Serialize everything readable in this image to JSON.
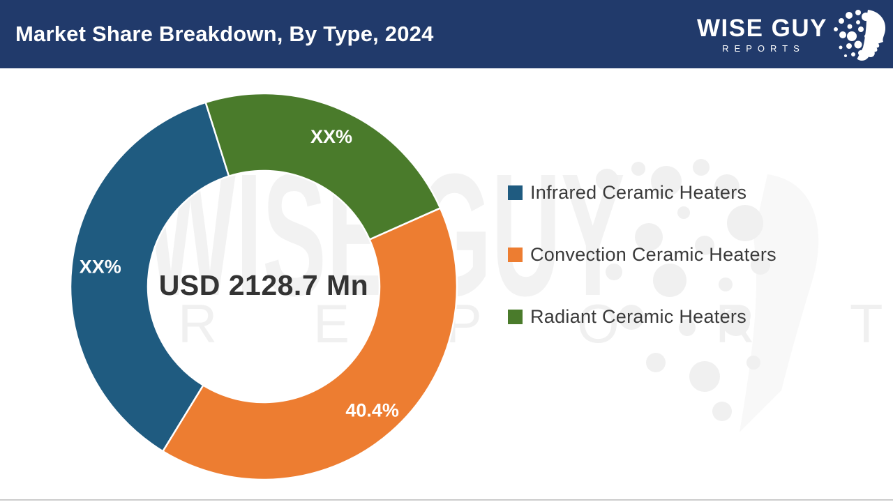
{
  "header": {
    "title": "Market Share Breakdown, By Type, 2024",
    "bg_color": "#213A6B",
    "logo_line1": "WISE GUY",
    "logo_line2": "REPORTS"
  },
  "watermark": {
    "line1": "WISE GUY",
    "line2": "R E P O R T S"
  },
  "chart_data": {
    "type": "pie",
    "subtype": "donut",
    "title": "Market Share Breakdown, By Type, 2024",
    "center_label": "USD 2128.7 Mn",
    "legend_position": "right",
    "start_angle_deg": 107.5,
    "direction": "counterclockwise",
    "inner_radius_ratio": 0.6,
    "series": [
      {
        "name": "Infrared Ceramic Heaters",
        "color": "#1F5B80",
        "pct": 36.4,
        "label": "XX%"
      },
      {
        "name": "Convection Ceramic Heaters",
        "color": "#ED7D31",
        "pct": 40.4,
        "label": "40.4%"
      },
      {
        "name": "Radiant Ceramic Heaters",
        "color": "#4A7B2B",
        "pct": 23.2,
        "label": "XX%"
      }
    ]
  }
}
